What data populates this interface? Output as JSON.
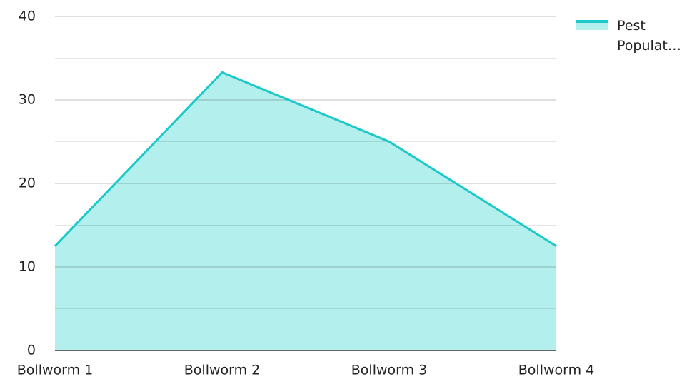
{
  "chart_data": {
    "type": "area",
    "categories": [
      "Bollworm 1",
      "Bollworm 2",
      "Bollworm 3",
      "Bollworm 4"
    ],
    "series": [
      {
        "name": "Pest Populat…",
        "color": "#1cc9c9",
        "fill": "#b2efed",
        "values": [
          12.5,
          33.3,
          25,
          12.5
        ]
      }
    ],
    "ylim": [
      0,
      40
    ],
    "yticks": [
      0,
      10,
      20,
      30,
      40
    ],
    "minor_yticks": [
      5,
      15,
      25,
      35
    ],
    "grid": true,
    "legend": "right"
  }
}
